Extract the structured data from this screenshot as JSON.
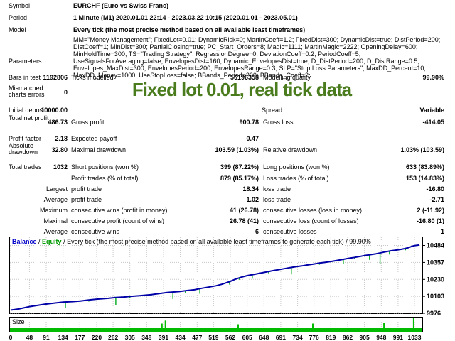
{
  "header": {
    "symbol_label": "Symbol",
    "symbol_value": "EURCHF (Euro vs Swiss Franc)",
    "period_label": "Period",
    "period_value": "1 Minute (M1) 2020.01.01 22:14 - 2023.03.22 10:15 (2020.01.01 - 2023.05.01)",
    "model_label": "Model",
    "model_value": "Every tick (the most precise method based on all available least timeframes)",
    "parameters_label": "Parameters",
    "parameters_value": "MM=\"Money Management\"; FixedLot=0.01; DynamicRisk=0; MartinCoeff=1.2; FixedDist=300; DynamicDist=true; DistPeriod=200; DistCoeff=1; MinDist=300; PartialClosing=true; PC_Start_Orders=8; Magic=1111; MartinMagic=2222; OpeningDelay=600; MinHoldTime=300; TS=\"Trading Strategy\"; RegressionDegree=0; DeviationCoeff=0.2; PeriodCoeff=5; UseSignalsForAveraging=false; EnvelopesDist=160; Dynamic_EnvelopesDist=true; D_DistPeriod=200; D_DistRange=0.5; Envelopes_MaxDist=300; EnvelopesPeriod=200; EnvelopesRange=0.3; SLP=\"Stop Loss Parameters\"; MaxDD_Percent=10; MaxDD_Money=1000; UseStopLoss=false; BBands_Period=200; BBands_Coeff=2;"
  },
  "banner": {
    "text": "Fixed lot 0.01, real tick data",
    "color": "#4A7C1E"
  },
  "stats": {
    "bars_in_test": {
      "label": "Bars in test",
      "value": "1192806",
      "l2": "Ticks modelled",
      "v2": "56196358",
      "l3": "Modelling quality",
      "v3": "99.90%"
    },
    "mismatched": {
      "label": "Mismatched charts errors",
      "value": "0"
    },
    "initial_deposit": {
      "label": "Initial deposit",
      "value": "10000.00",
      "l3": "Spread",
      "v3": "Variable"
    },
    "net_profit": {
      "label": "Total net profit",
      "value": "486.73",
      "l2": "Gross profit",
      "v2": "900.78",
      "l3": "Gross loss",
      "v3": "-414.05"
    },
    "profit_factor": {
      "label": "Profit factor",
      "value": "2.18",
      "l2": "Expected payoff",
      "v2": "0.47"
    },
    "abs_drawdown": {
      "label": "Absolute drawdown",
      "value": "32.80",
      "l2": "Maximal drawdown",
      "v2": "103.59 (1.03%)",
      "l3": "Relative drawdown",
      "v3": "1.03% (103.59)"
    },
    "total_trades": {
      "label": "Total trades",
      "value": "1032",
      "l2": "Short positions (won %)",
      "v2": "399 (87.22%)",
      "l3": "Long positions (won %)",
      "v3": "633 (83.89%)"
    },
    "profit_trades": {
      "l2": "Profit trades (% of total)",
      "v2": "879 (85.17%)",
      "l3": "Loss trades (% of total)",
      "v3": "153 (14.83%)"
    },
    "largest": {
      "label": "Largest",
      "l2": "profit trade",
      "v2": "18.34",
      "l3": "loss trade",
      "v3": "-16.80"
    },
    "average": {
      "label": "Average",
      "l2": "profit trade",
      "v2": "1.02",
      "l3": "loss trade",
      "v3": "-2.71"
    },
    "maximum": {
      "label": "Maximum",
      "l2": "consecutive wins (profit in money)",
      "v2": "41 (26.78)",
      "l3": "consecutive losses (loss in money)",
      "v3": "2 (-11.92)"
    },
    "maximal": {
      "label": "Maximal",
      "l2": "consecutive profit (count of wins)",
      "v2": "26.78 (41)",
      "l3": "consecutive loss (count of losses)",
      "v3": "-16.80 (1)"
    },
    "avg_consec": {
      "label": "Average",
      "l2": "consecutive wins",
      "v2": "6",
      "l3": "consecutive losses",
      "v3": "1"
    }
  },
  "chart_data": {
    "type": "line",
    "legend": {
      "balance_label": "Balance",
      "sep1": " / ",
      "equity_label": "Equity",
      "rest": " / Every tick (the most precise method based on all available least timeframes to generate each tick) / 99.90%"
    },
    "size_label": "Size",
    "x_ticks": [
      0,
      48,
      91,
      134,
      177,
      220,
      262,
      305,
      348,
      391,
      434,
      477,
      519,
      562,
      605,
      648,
      691,
      734,
      776,
      819,
      862,
      905,
      948,
      991,
      1033
    ],
    "y_ticks": [
      10484,
      10357,
      10230,
      10103,
      9976
    ],
    "xlim": [
      0,
      1045
    ],
    "ylim": [
      9976,
      10484
    ],
    "balance_points": [
      [
        0,
        10000
      ],
      [
        20,
        10008
      ],
      [
        48,
        10026
      ],
      [
        87,
        10044
      ],
      [
        110,
        10052
      ],
      [
        134,
        10060
      ],
      [
        160,
        10064
      ],
      [
        178,
        10068
      ],
      [
        200,
        10076
      ],
      [
        220,
        10082
      ],
      [
        250,
        10088
      ],
      [
        269,
        10094
      ],
      [
        290,
        10098
      ],
      [
        305,
        10102
      ],
      [
        330,
        10108
      ],
      [
        360,
        10116
      ],
      [
        380,
        10124
      ],
      [
        400,
        10132
      ],
      [
        420,
        10136
      ],
      [
        434,
        10140
      ],
      [
        451,
        10146
      ],
      [
        470,
        10152
      ],
      [
        490,
        10164
      ],
      [
        510,
        10174
      ],
      [
        525,
        10182
      ],
      [
        540,
        10193
      ],
      [
        552,
        10205
      ],
      [
        562,
        10215
      ],
      [
        575,
        10232
      ],
      [
        590,
        10246
      ],
      [
        605,
        10258
      ],
      [
        620,
        10266
      ],
      [
        634,
        10274
      ],
      [
        648,
        10282
      ],
      [
        665,
        10292
      ],
      [
        680,
        10300
      ],
      [
        700,
        10310
      ],
      [
        715,
        10318
      ],
      [
        730,
        10325
      ],
      [
        745,
        10331
      ],
      [
        760,
        10338
      ],
      [
        776,
        10345
      ],
      [
        790,
        10352
      ],
      [
        805,
        10358
      ],
      [
        819,
        10364
      ],
      [
        835,
        10372
      ],
      [
        850,
        10380
      ],
      [
        862,
        10386
      ],
      [
        875,
        10392
      ],
      [
        890,
        10400
      ],
      [
        905,
        10408
      ],
      [
        920,
        10415
      ],
      [
        935,
        10422
      ],
      [
        948,
        10430
      ],
      [
        960,
        10437
      ],
      [
        973,
        10444
      ],
      [
        985,
        10449
      ],
      [
        998,
        10455
      ],
      [
        1008,
        10460
      ],
      [
        1018,
        10468
      ],
      [
        1026,
        10477
      ],
      [
        1033,
        10483
      ],
      [
        1045,
        10487
      ]
    ],
    "equity_dips": [
      [
        140,
        45
      ],
      [
        200,
        12
      ],
      [
        269,
        58
      ],
      [
        305,
        14
      ],
      [
        360,
        10
      ],
      [
        415,
        52
      ],
      [
        447,
        18
      ],
      [
        484,
        38
      ],
      [
        560,
        22
      ],
      [
        585,
        14
      ],
      [
        618,
        30
      ],
      [
        660,
        14
      ],
      [
        718,
        52
      ],
      [
        790,
        12
      ],
      [
        851,
        32
      ],
      [
        880,
        14
      ],
      [
        918,
        38
      ],
      [
        945,
        85
      ],
      [
        969,
        26
      ],
      [
        1010,
        14
      ]
    ],
    "size_spikes": [
      [
        387,
        0.55
      ],
      [
        396,
        0.75
      ],
      [
        582,
        0.5
      ],
      [
        773,
        0.55
      ],
      [
        955,
        0.6
      ],
      [
        1031,
        0.95
      ]
    ],
    "colors": {
      "balance": "#0000A8",
      "equity": "#00AA22",
      "size": "#00BB00",
      "grid": "#C8C8C8",
      "frame": "#000000"
    }
  }
}
